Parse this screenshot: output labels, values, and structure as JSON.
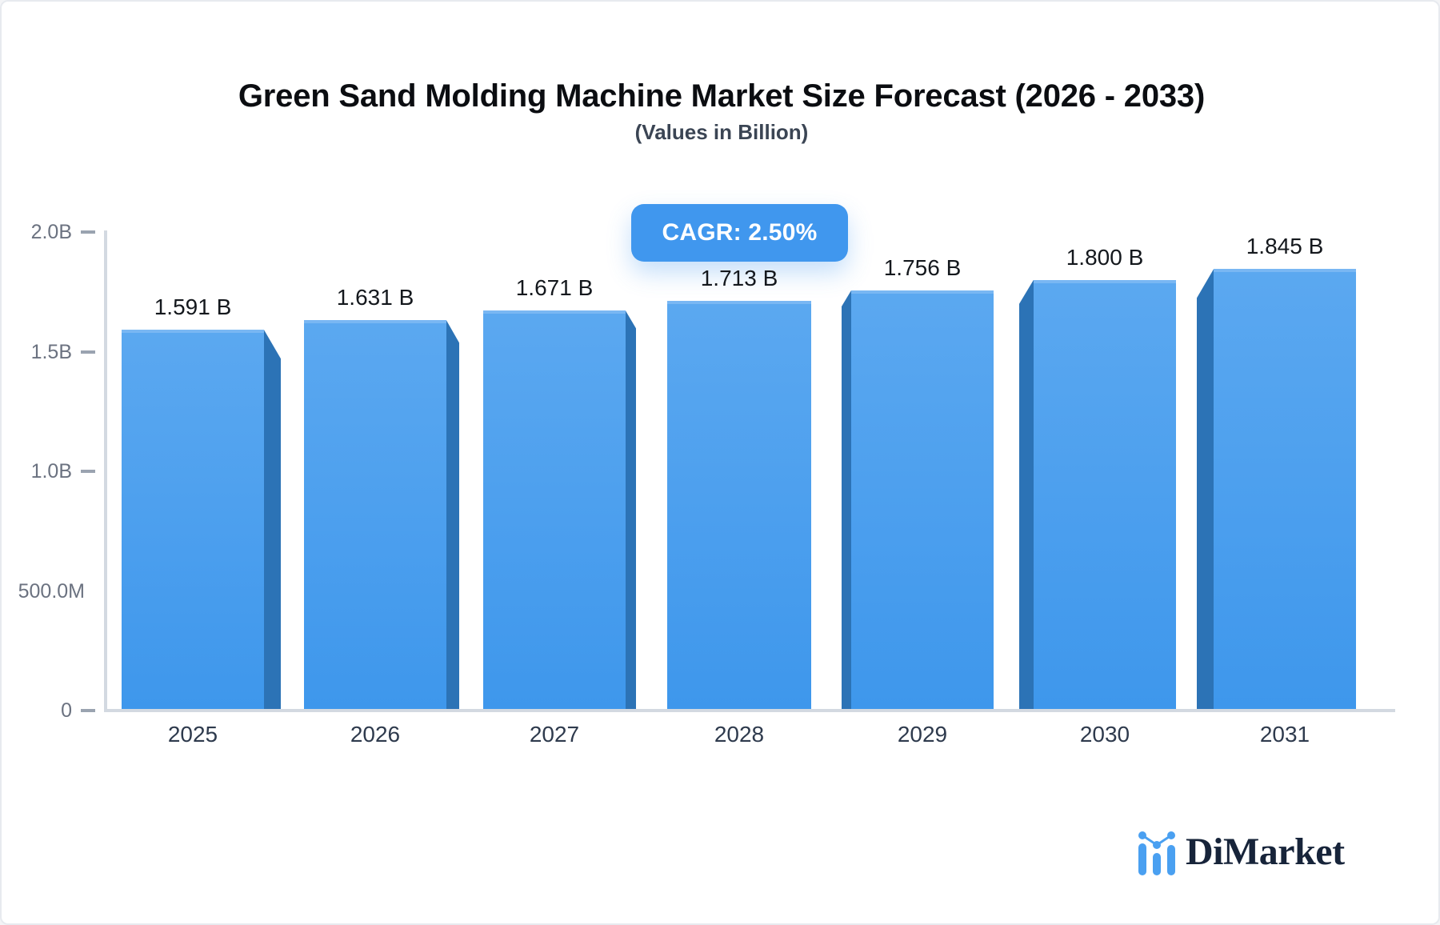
{
  "header": {
    "title": "Green Sand Molding Machine Market Size Forecast (2026 - 2033)",
    "subtitle": "(Values in Billion)"
  },
  "cagr_badge": {
    "label": "CAGR: 2.50%",
    "color": "#4097ee",
    "text_color": "#ffffff"
  },
  "chart_data": {
    "type": "bar",
    "title": "Green Sand Molding Machine Market Size Forecast (2026 - 2033)",
    "subtitle": "(Values in Billion)",
    "categories": [
      "2025",
      "2026",
      "2027",
      "2028",
      "2029",
      "2030",
      "2031"
    ],
    "values": [
      1.591,
      1.631,
      1.671,
      1.713,
      1.756,
      1.8,
      1.845
    ],
    "value_labels": [
      "1.591 B",
      "1.631 B",
      "1.671 B",
      "1.713 B",
      "1.756 B",
      "1.800 B",
      "1.845 B"
    ],
    "cagr_percent": 2.5,
    "xlabel": "",
    "ylabel": "",
    "ylim": [
      0,
      2.0
    ],
    "yticks": [
      {
        "label": "2.0B",
        "value": 2.0,
        "dash": true
      },
      {
        "label": "1.5B",
        "value": 1.5,
        "dash": true
      },
      {
        "label": "1.0B",
        "value": 1.0,
        "dash": true
      },
      {
        "label": "500.0M",
        "value": 0.5,
        "dash": false
      },
      {
        "label": "0",
        "value": 0.0,
        "dash": true
      }
    ],
    "grid": false,
    "legend": "none",
    "bar_style": "3d-bevel",
    "colors": {
      "face_top": "#5ba8f0",
      "face_bottom": "#3e97ec",
      "face_highlight": "#79b7f3",
      "side": "#2c73b6",
      "axis_line": "#d3d9e1",
      "tick_dash": "#9aa3b0",
      "y_label": "#6b7280",
      "x_label": "#2e3a4d",
      "value_label": "#14181d"
    }
  },
  "footer": {
    "brand": "DiMarket",
    "logo_icon": "bar-chart-logo-icon",
    "icon_color": "#4aa0f1",
    "text_color": "#17243a"
  }
}
